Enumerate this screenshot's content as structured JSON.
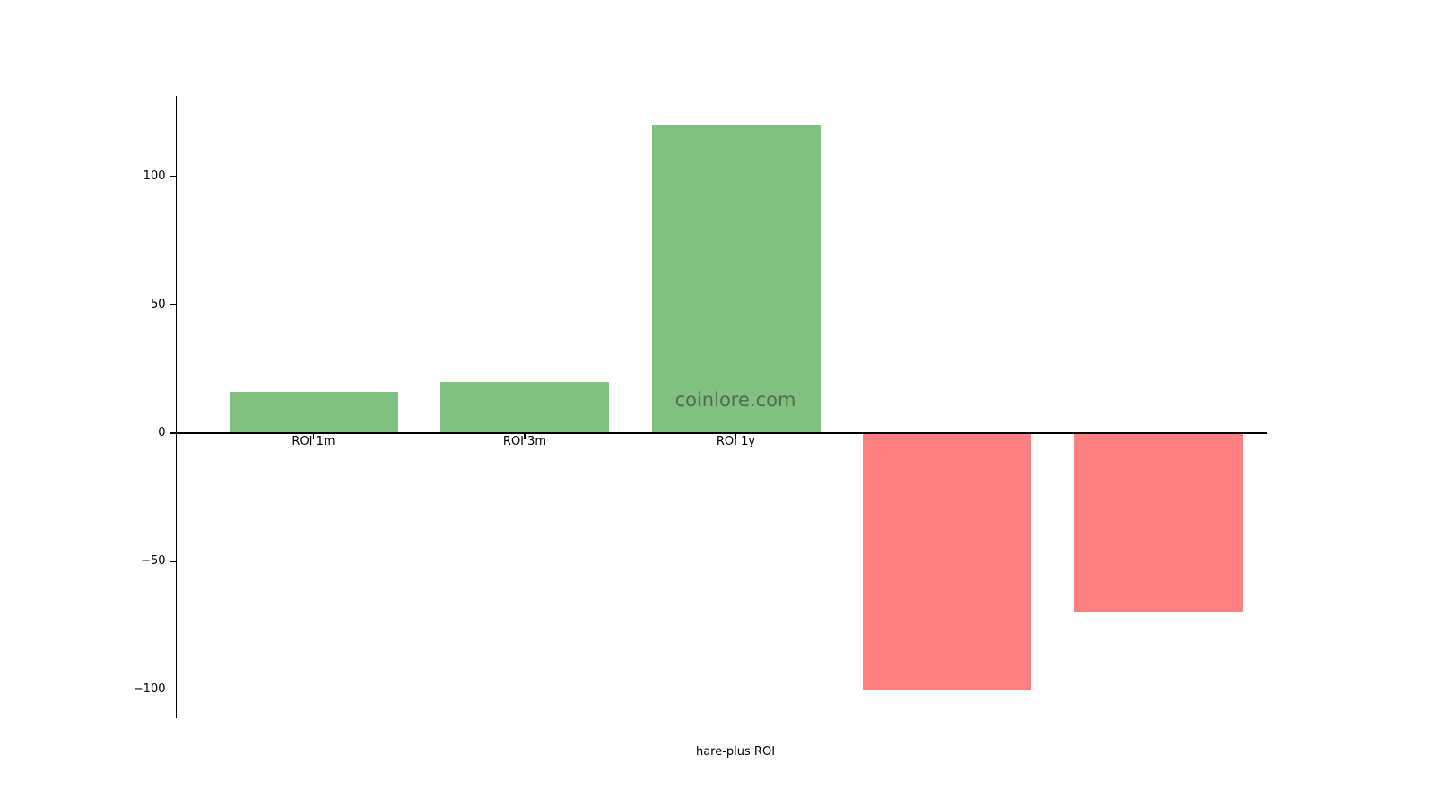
{
  "chart_data": {
    "type": "bar",
    "title": "",
    "xlabel": "hare-plus ROI",
    "ylabel": "",
    "categories": [
      "ROI 1m",
      "ROI 3m",
      "ROI 1y",
      "",
      ""
    ],
    "values": [
      16,
      20,
      120,
      -100,
      -70
    ],
    "series": [
      {
        "name": "hare-plus ROI",
        "values": [
          16,
          20,
          120,
          -100,
          -70
        ]
      }
    ],
    "yticks": [
      100,
      50,
      0,
      -50,
      -100
    ],
    "ytick_labels": [
      "100",
      "50",
      "0",
      "−50",
      "−100"
    ],
    "ylim": [
      -111,
      131
    ],
    "grid": false,
    "legend": null,
    "colors": {
      "positive_bar": "#80c080",
      "negative_bar": "#ff8080",
      "axis": "#000000",
      "tick_label": "#000000",
      "watermark": "rgba(50,50,50,0.6)"
    },
    "watermark": {
      "text": "coinlore.com"
    }
  }
}
